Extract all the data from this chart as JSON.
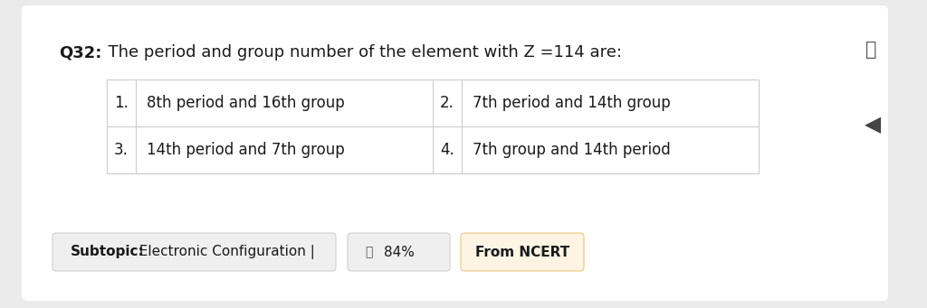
{
  "background_color": "#ebebeb",
  "card_color": "#ffffff",
  "question_label": "Q32:",
  "question_text": "  The period and group number of the element with Z =114 are:",
  "options": [
    {
      "num": "1.",
      "text": "8th period and 16th group"
    },
    {
      "num": "2.",
      "text": "7th period and 14th group"
    },
    {
      "num": "3.",
      "text": "14th period and 7th group"
    },
    {
      "num": "4.",
      "text": "7th group and 14th period"
    }
  ],
  "subtopic_label": "Subtopic:",
  "subtopic_text": "  Electronic Configuration |",
  "like_text": "84%",
  "ncert_text": "From NCERT",
  "ncert_bg": "#fdf4e3",
  "ncert_border": "#e8c97a",
  "subtitle_bg": "#efefef",
  "font_size_question": 13,
  "font_size_options": 12,
  "font_size_subtopic": 11,
  "table_line_color": "#cccccc"
}
